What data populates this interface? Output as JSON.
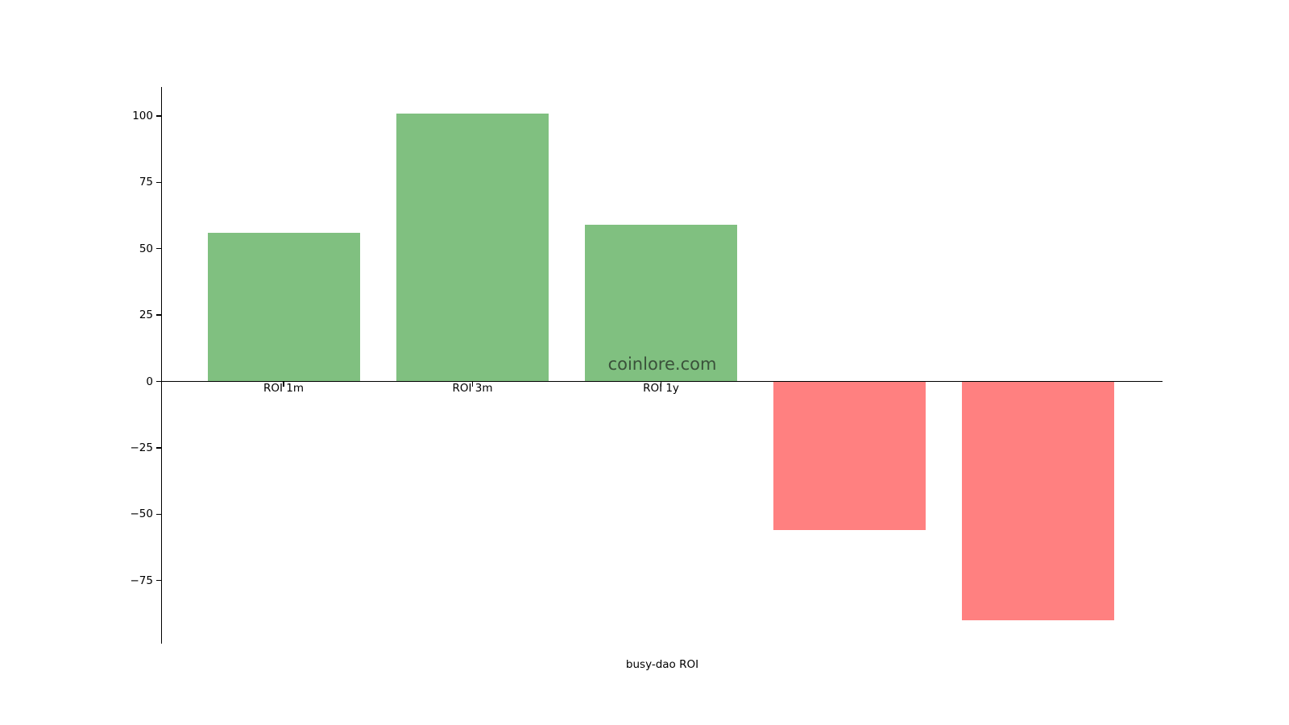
{
  "watermark": {
    "text": "coinlore.com"
  },
  "chart_data": {
    "type": "bar",
    "title": "",
    "xlabel": "busy-dao ROI",
    "ylabel": "",
    "categories": [
      "ROI 1m",
      "ROI 3m",
      "ROI 1y",
      "",
      ""
    ],
    "values": [
      56,
      101,
      59,
      -56,
      -90
    ],
    "colors": {
      "positive": "#80c080",
      "negative": "#ff8080",
      "axis": "#000000"
    },
    "yticks": [
      100,
      75,
      50,
      25,
      0,
      -25,
      -50,
      -75
    ],
    "ylim": [
      -99.5,
      110.5
    ],
    "grid": false,
    "legend_position": "none",
    "zero_baseline": true
  }
}
